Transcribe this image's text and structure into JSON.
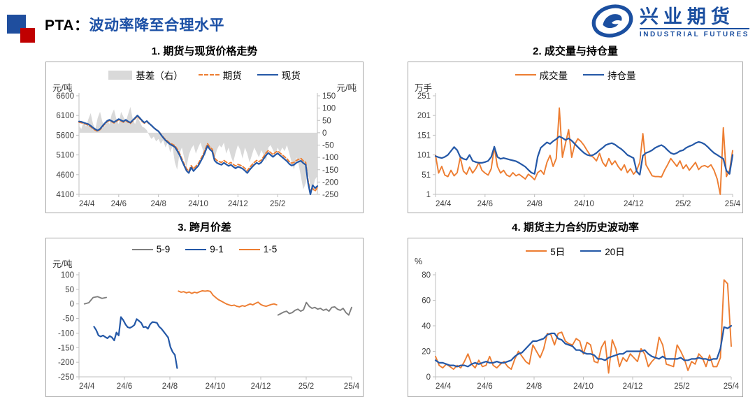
{
  "header": {
    "title_prefix": "PTA：",
    "title_main": "波动率降至合理水平",
    "brand": {
      "name": "兴业期货",
      "subtitle": "INDUSTRIAL FUTURES"
    }
  },
  "colors": {
    "orange": "#ED7D31",
    "blue": "#2458A7",
    "gray_area": "#D9D9D9",
    "gray_line": "#7F7F7F",
    "axis": "#BFBFBF",
    "label": "#404040",
    "brand_blue": "#1B4FA0",
    "title_blue": "#1C50A5",
    "deco_red": "#C00000",
    "deco_blue": "#1F4E9E"
  },
  "chart_data": [
    {
      "type": "line",
      "title": "1. 期货与现货价格走势",
      "unit_left": "元/吨",
      "unit_right": "元/吨",
      "ylim_left": [
        4100,
        6600
      ],
      "yticks_left": [
        6600,
        6100,
        5600,
        5100,
        4600,
        4100
      ],
      "ylim_right": [
        -250,
        150
      ],
      "yticks_right": [
        150,
        100,
        50,
        0,
        -50,
        -100,
        -150,
        -200,
        -250
      ],
      "x_tick_labels": [
        "24/4",
        "24/6",
        "24/8",
        "24/10",
        "24/12",
        "25/2"
      ],
      "x_intervals": 6,
      "legend": [
        {
          "label": "基差（右）",
          "swatch": "area",
          "color": "gray_area"
        },
        {
          "label": "期货",
          "swatch": "dashed",
          "color": "orange"
        },
        {
          "label": "现货",
          "swatch": "line",
          "color": "blue"
        }
      ],
      "series": [
        {
          "name": "基差（右）",
          "type": "area",
          "axis": "right",
          "color": "gray_area",
          "values": [
            30,
            15,
            45,
            25,
            55,
            80,
            35,
            15,
            60,
            85,
            45,
            25,
            55,
            35,
            75,
            95,
            55,
            35,
            85,
            65,
            45,
            75,
            105,
            55,
            35,
            65,
            45,
            25,
            20,
            10,
            -10,
            -25,
            -15,
            -35,
            -25,
            -45,
            -30,
            -60,
            -40,
            -80,
            -55,
            -120,
            -150,
            -85,
            -60,
            -100,
            -140,
            -90,
            -65,
            -50,
            -85,
            -60,
            -40,
            -70,
            -95,
            -50,
            -65,
            -85,
            -105,
            -70,
            -50,
            -60,
            -40,
            -85,
            -60,
            -95,
            -120,
            -80,
            -50,
            -70,
            -105,
            -60,
            -85,
            -120,
            -90,
            -60,
            -80,
            -100,
            -70,
            -90,
            -115,
            -60,
            -50,
            -70,
            -90,
            -60,
            -80,
            -60,
            -75,
            -50,
            -85,
            -120,
            -150,
            -100,
            -130,
            -180,
            -230,
            -205,
            -160,
            -215,
            -230,
            -190,
            -175
          ]
        },
        {
          "name": "期货",
          "type": "line",
          "axis": "left",
          "color": "orange",
          "dash": true,
          "values": [
            5930,
            5915,
            5900,
            5880,
            5855,
            5815,
            5765,
            5725,
            5700,
            5740,
            5810,
            5880,
            5940,
            5970,
            5940,
            5910,
            5950,
            5990,
            5960,
            5930,
            5970,
            5930,
            5900,
            5960,
            6020,
            6080,
            6020,
            5950,
            5905,
            5945,
            5890,
            5845,
            5790,
            5745,
            5705,
            5630,
            5555,
            5490,
            5445,
            5395,
            5370,
            5335,
            5250,
            5140,
            5005,
            4875,
            4750,
            4690,
            4830,
            4745,
            4815,
            4875,
            4985,
            5095,
            5235,
            5385,
            5295,
            5245,
            5020,
            4960,
            4930,
            4910,
            4960,
            4920,
            4880,
            4910,
            4860,
            4820,
            4860,
            4840,
            4810,
            4760,
            4700,
            4780,
            4850,
            4910,
            4960,
            4930,
            4970,
            5060,
            5150,
            5210,
            5160,
            5110,
            5160,
            5200,
            5150,
            5100,
            5050,
            5000,
            4930,
            4890,
            4910,
            4960,
            4990,
            5010,
            4950,
            4910,
            4460,
            4160,
            4250,
            4180,
            4280
          ]
        },
        {
          "name": "现货",
          "type": "line",
          "axis": "left",
          "color": "blue",
          "values": [
            5950,
            5940,
            5920,
            5900,
            5880,
            5840,
            5790,
            5750,
            5720,
            5760,
            5830,
            5900,
            5960,
            5990,
            5960,
            5930,
            5970,
            6010,
            5980,
            5950,
            5990,
            5950,
            5920,
            5980,
            6040,
            6100,
            6040,
            5970,
            5920,
            5960,
            5900,
            5850,
            5790,
            5740,
            5700,
            5620,
            5540,
            5470,
            5420,
            5370,
            5340,
            5300,
            5210,
            5100,
            4960,
            4830,
            4700,
            4640,
            4780,
            4690,
            4760,
            4820,
            4930,
            5040,
            5180,
            5330,
            5240,
            5190,
            4960,
            4900,
            4870,
            4850,
            4900,
            4860,
            4820,
            4850,
            4800,
            4760,
            4800,
            4780,
            4750,
            4700,
            4640,
            4720,
            4790,
            4850,
            4900,
            4870,
            4910,
            5000,
            5090,
            5150,
            5100,
            5050,
            5100,
            5140,
            5090,
            5040,
            4990,
            4940,
            4870,
            4830,
            4850,
            4900,
            4930,
            4950,
            4890,
            4850,
            4400,
            4100,
            4330,
            4260,
            4310
          ]
        }
      ]
    },
    {
      "type": "line",
      "title": "2. 成交量与持仓量",
      "unit_left": "万手",
      "ylim_left": [
        1,
        251
      ],
      "yticks_left": [
        251,
        201,
        151,
        101,
        51,
        1
      ],
      "x_tick_labels": [
        "24/4",
        "24/6",
        "24/8",
        "24/10",
        "24/12",
        "25/2",
        "25/4"
      ],
      "legend": [
        {
          "label": "成交量",
          "swatch": "line",
          "color": "orange"
        },
        {
          "label": "持仓量",
          "swatch": "line",
          "color": "blue"
        }
      ],
      "series": [
        {
          "name": "成交量",
          "type": "line",
          "axis": "left",
          "color": "orange",
          "values": [
            100,
            55,
            72,
            50,
            46,
            62,
            48,
            56,
            95,
            60,
            52,
            70,
            55,
            66,
            82,
            62,
            55,
            50,
            66,
            120,
            72,
            55,
            62,
            50,
            46,
            56,
            48,
            52,
            46,
            40,
            52,
            46,
            38,
            56,
            62,
            52,
            82,
            100,
            72,
            92,
            220,
            95,
            130,
            165,
            95,
            128,
            142,
            135,
            125,
            112,
            100,
            95,
            86,
            105,
            82,
            72,
            92,
            76,
            86,
            72,
            62,
            76,
            56,
            66,
            52,
            62,
            82,
            155,
            76,
            62,
            48,
            46,
            46,
            45,
            62,
            76,
            92,
            82,
            72,
            86,
            66,
            76,
            62,
            72,
            82,
            64,
            72,
            74,
            70,
            76,
            62,
            40,
            1,
            170,
            46,
            62,
            112
          ]
        },
        {
          "name": "持仓量",
          "type": "line",
          "axis": "left",
          "color": "blue",
          "values": [
            98,
            95,
            93,
            96,
            101,
            111,
            121,
            113,
            96,
            91,
            89,
            101,
            86,
            83,
            81,
            81,
            83,
            86,
            96,
            122,
            96,
            91,
            93,
            91,
            89,
            87,
            85,
            81,
            76,
            71,
            63,
            56,
            53,
            96,
            119,
            126,
            133,
            129,
            136,
            141,
            148,
            144,
            139,
            143,
            137,
            129,
            121,
            113,
            106,
            101,
            99,
            101,
            106,
            113,
            119,
            126,
            129,
            131,
            127,
            121,
            116,
            109,
            101,
            97,
            93,
            59,
            51,
            99,
            106,
            109,
            113,
            119,
            123,
            126,
            121,
            113,
            106,
            103,
            106,
            111,
            113,
            119,
            123,
            126,
            131,
            134,
            132,
            128,
            121,
            113,
            106,
            101,
            96,
            91,
            61,
            53,
            101
          ]
        }
      ]
    },
    {
      "type": "line",
      "title": "3. 跨月价差",
      "unit_left": "元/吨",
      "ylim_left": [
        -250,
        100
      ],
      "yticks_left": [
        100,
        50,
        0,
        -50,
        -100,
        -150,
        -200,
        -250
      ],
      "x_tick_labels": [
        "24/4",
        "24/6",
        "24/8",
        "24/10",
        "24/12",
        "25/2",
        "25/4"
      ],
      "legend": [
        {
          "label": "5-9",
          "swatch": "line",
          "color": "gray_line"
        },
        {
          "label": "9-1",
          "swatch": "line",
          "color": "blue"
        },
        {
          "label": "1-5",
          "swatch": "line",
          "color": "orange"
        }
      ],
      "series": [
        {
          "name": "5-9",
          "type": "line",
          "axis": "left",
          "color": "gray_line",
          "x0": 0.02,
          "x1": 0.1,
          "values": [
            0,
            4,
            22,
            25,
            19,
            22
          ]
        },
        {
          "name": "9-1",
          "type": "line",
          "axis": "left",
          "color": "blue",
          "x0": 0.055,
          "x1": 0.36,
          "values": [
            -78,
            -90,
            -108,
            -112,
            -108,
            -113,
            -118,
            -110,
            -115,
            -125,
            -98,
            -108,
            -45,
            -55,
            -70,
            -80,
            -82,
            -78,
            -72,
            -52,
            -58,
            -65,
            -80,
            -78,
            -85,
            -70,
            -62,
            -63,
            -65,
            -78,
            -85,
            -95,
            -105,
            -115,
            -148,
            -165,
            -175,
            -220
          ]
        },
        {
          "name": "1-5",
          "type": "line",
          "axis": "left",
          "color": "orange",
          "x0": 0.365,
          "x1": 0.725,
          "values": [
            44,
            40,
            42,
            38,
            41,
            36,
            40,
            38,
            42,
            45,
            44,
            45,
            43,
            30,
            22,
            15,
            10,
            5,
            0,
            -3,
            -6,
            -4,
            -8,
            -10,
            -6,
            -8,
            -4,
            0,
            -3,
            2,
            6,
            -2,
            -6,
            -8,
            -5,
            -2,
            0,
            -3
          ]
        },
        {
          "name": "5-9",
          "type": "line",
          "axis": "left",
          "color": "gray_line",
          "x0": 0.73,
          "x1": 1.0,
          "values": [
            -38,
            -33,
            -28,
            -25,
            -33,
            -30,
            -22,
            -18,
            -25,
            -20,
            5,
            -8,
            -15,
            -12,
            -18,
            -15,
            -22,
            -18,
            -25,
            -12,
            -10,
            -18,
            -22,
            -15,
            -30,
            -38,
            -12
          ]
        }
      ]
    },
    {
      "type": "line",
      "title": "4. 期货主力合约历史波动率",
      "unit_left": "%",
      "ylim_left": [
        0,
        80
      ],
      "yticks_left": [
        80,
        60,
        40,
        20,
        0
      ],
      "x_tick_labels": [
        "24/4",
        "24/6",
        "24/8",
        "24/10",
        "24/12",
        "25/2",
        "25/4"
      ],
      "legend": [
        {
          "label": "5日",
          "swatch": "line",
          "color": "orange"
        },
        {
          "label": "20日",
          "swatch": "line",
          "color": "blue"
        }
      ],
      "series": [
        {
          "name": "5日",
          "type": "line",
          "axis": "left",
          "color": "orange",
          "values": [
            16,
            9,
            7,
            10,
            8,
            6,
            9,
            7,
            12,
            18,
            10,
            7,
            13,
            8,
            9,
            16,
            9,
            7,
            10,
            12,
            8,
            6,
            14,
            20,
            16,
            12,
            10,
            25,
            20,
            15,
            22,
            34,
            33,
            25,
            34,
            35,
            28,
            26,
            25,
            30,
            28,
            18,
            27,
            25,
            12,
            11,
            23,
            28,
            3,
            29,
            22,
            8,
            15,
            12,
            18,
            15,
            12,
            22,
            18,
            8,
            12,
            15,
            31,
            25,
            10,
            9,
            8,
            25,
            20,
            14,
            5,
            12,
            10,
            18,
            15,
            8,
            17,
            8,
            8,
            15,
            76,
            73,
            24
          ]
        },
        {
          "name": "20日",
          "type": "line",
          "axis": "left",
          "color": "blue",
          "values": [
            13,
            11,
            11,
            10,
            9,
            9,
            8,
            9,
            9,
            8,
            10,
            11,
            10,
            11,
            12,
            11,
            11,
            12,
            11,
            11,
            12,
            13,
            16,
            18,
            19,
            22,
            25,
            28,
            28,
            29,
            30,
            33,
            34,
            34,
            30,
            29,
            26,
            25,
            24,
            21,
            21,
            19,
            18,
            18,
            17,
            14,
            14,
            13,
            15,
            16,
            17,
            18,
            18,
            20,
            20,
            20,
            20,
            20,
            21,
            18,
            16,
            15,
            14,
            16,
            14,
            14,
            14,
            14,
            15,
            13,
            13,
            14,
            14,
            15,
            14,
            14,
            13,
            14,
            14,
            22,
            39,
            38,
            40
          ]
        }
      ]
    }
  ]
}
